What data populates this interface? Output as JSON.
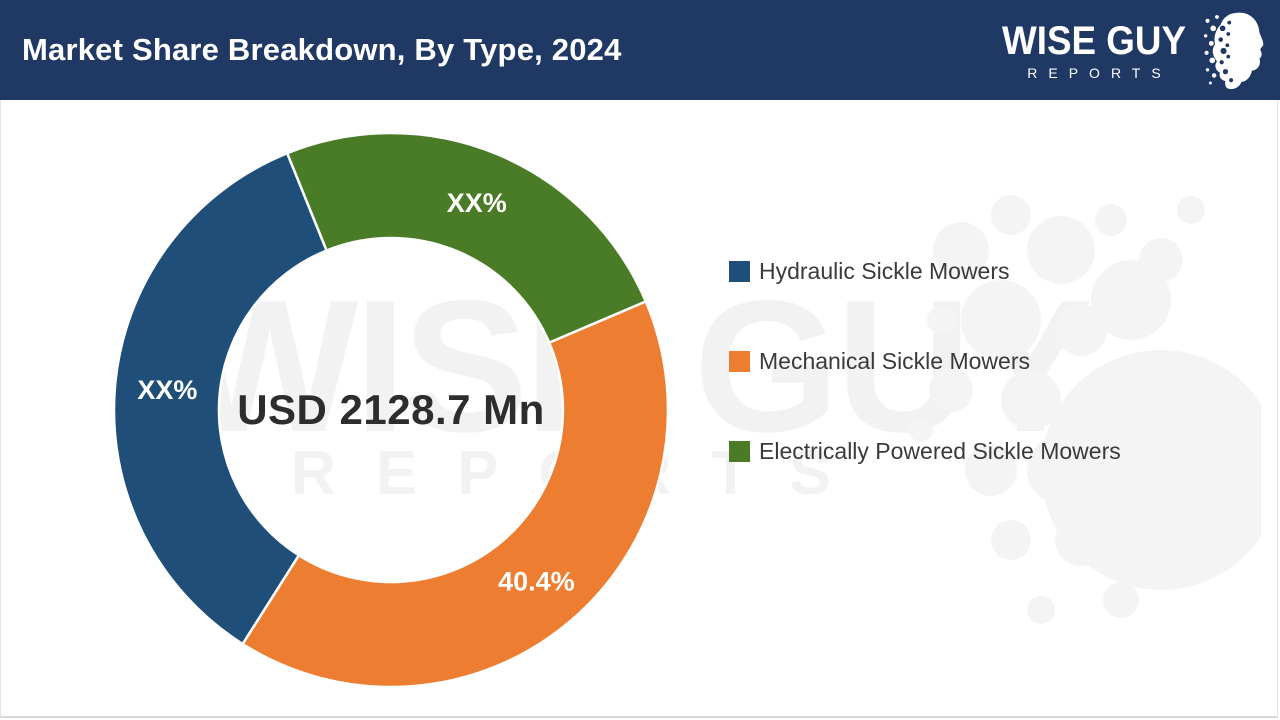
{
  "header": {
    "title": "Market Share Breakdown, By Type, 2024",
    "bg_color": "#1f3864",
    "logo": {
      "line1": "WISE GUY",
      "line2": "REPORTS"
    }
  },
  "watermark": {
    "line1": "WISE GUY",
    "line2": "REPORTS"
  },
  "chart_data": {
    "type": "pie",
    "subtype": "donut",
    "title": "Market Share Breakdown, By Type, 2024",
    "center_label": "USD 2128.7 Mn",
    "unit": "percent of market share",
    "segments": [
      {
        "name": "Hydraulic Sickle Mowers",
        "label": "XX%",
        "value_pct": 34.9,
        "color": "#1f4e79"
      },
      {
        "name": "Mechanical Sickle Mowers",
        "label": "40.4%",
        "value_pct": 40.4,
        "color": "#ed7d31"
      },
      {
        "name": "Electrically Powered Sickle Mowers",
        "label": "XX%",
        "value_pct": 24.7,
        "color": "#4a7c28"
      }
    ],
    "start_angle_deg": 112,
    "direction": "counterclockwise",
    "legend_position": "right",
    "label_radius_ratio": 0.5,
    "colors": {
      "header_bar": "#1f3864",
      "center_text": "#2d2d2d",
      "watermark": "#f2f2f2"
    }
  }
}
